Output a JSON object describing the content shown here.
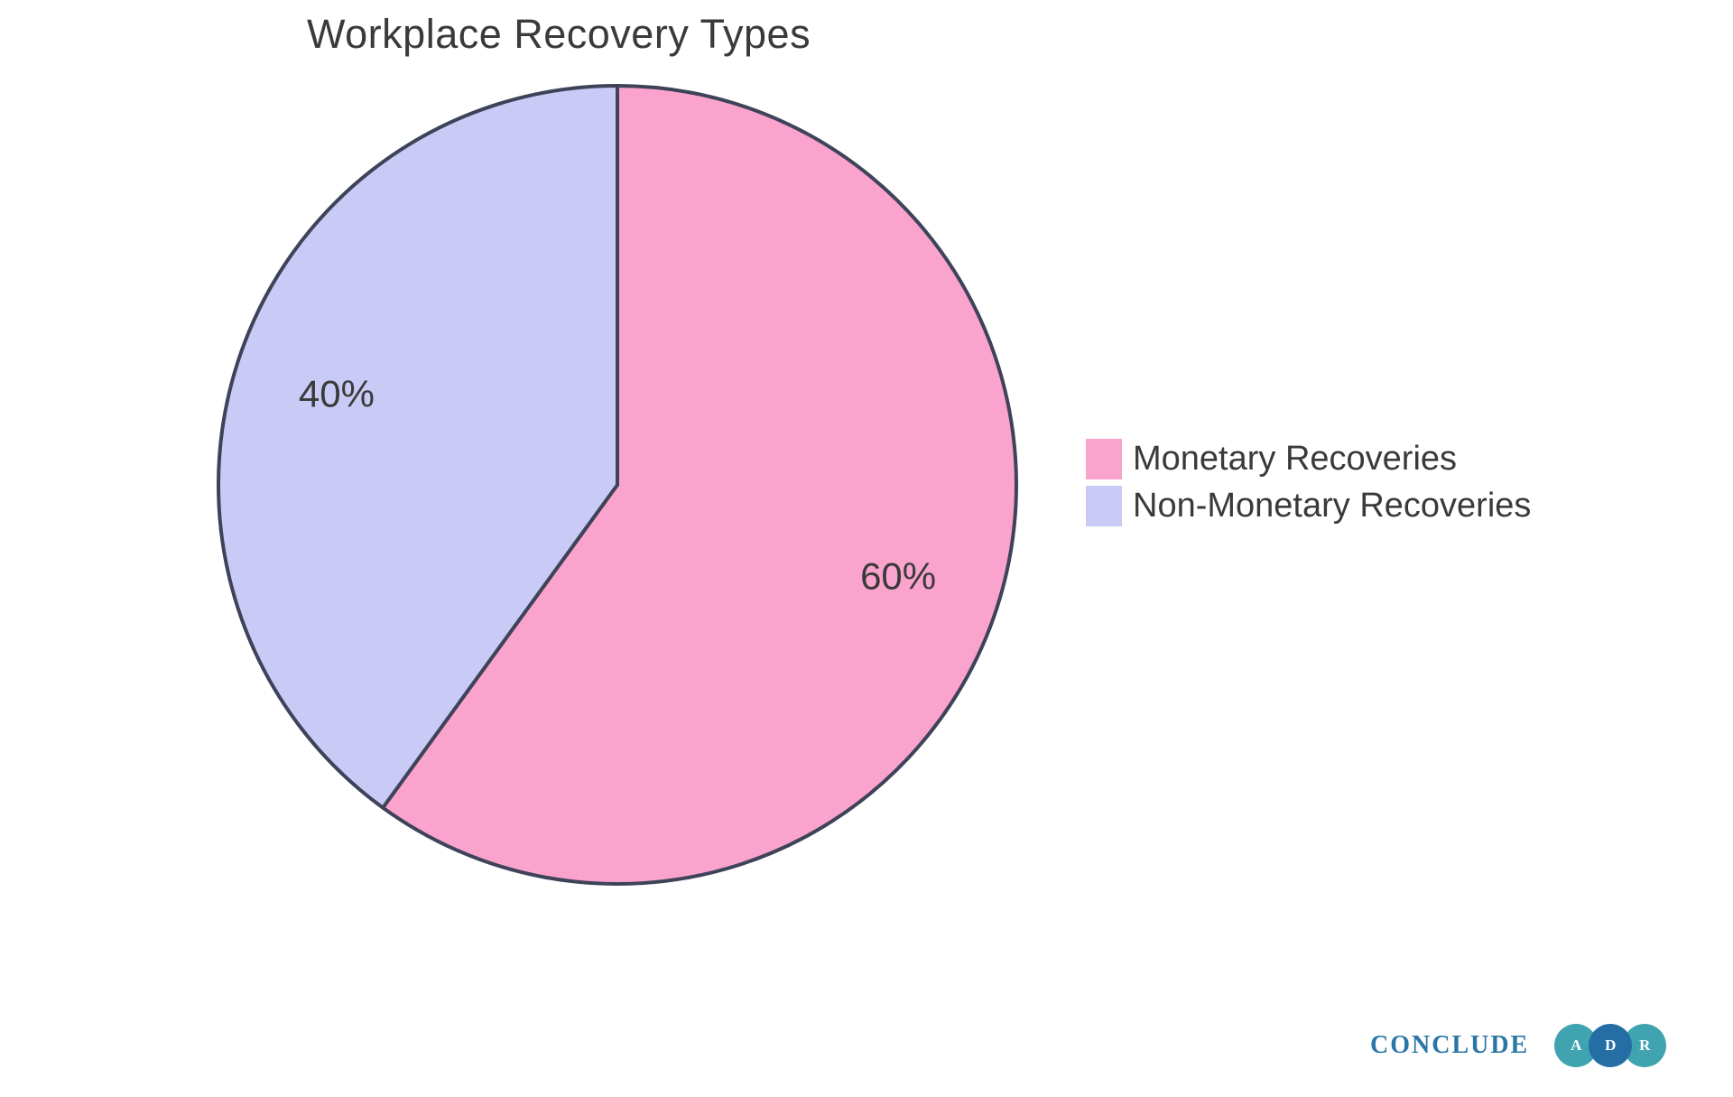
{
  "title": "Workplace Recovery Types",
  "chart_data": {
    "type": "pie",
    "title": "Workplace Recovery Types",
    "labels": [
      "Monetary Recoveries",
      "Non-Monetary Recoveries"
    ],
    "values": [
      60,
      40
    ],
    "value_labels": [
      "60%",
      "40%"
    ],
    "colors": [
      "#FAA3CC",
      "#C9CBF6"
    ],
    "slice_border_color": "#3E4359",
    "start_angle_deg": -90,
    "direction": "clockwise",
    "legend_position": "right",
    "label_text_color": "#3A3A3A",
    "background": "#FFFFFF"
  },
  "legend": {
    "items": [
      {
        "label": "Monetary Recoveries",
        "color": "#FAA3CC"
      },
      {
        "label": "Non-Monetary Recoveries",
        "color": "#C9CBF6"
      }
    ]
  },
  "branding": {
    "wordmark": "CONCLUDE",
    "wordmark_color": "#2A76A6",
    "badges": [
      {
        "letter": "A",
        "color": "#40A3B0"
      },
      {
        "letter": "D",
        "color": "#246EA5"
      },
      {
        "letter": "R",
        "color": "#40A3B0"
      }
    ]
  }
}
